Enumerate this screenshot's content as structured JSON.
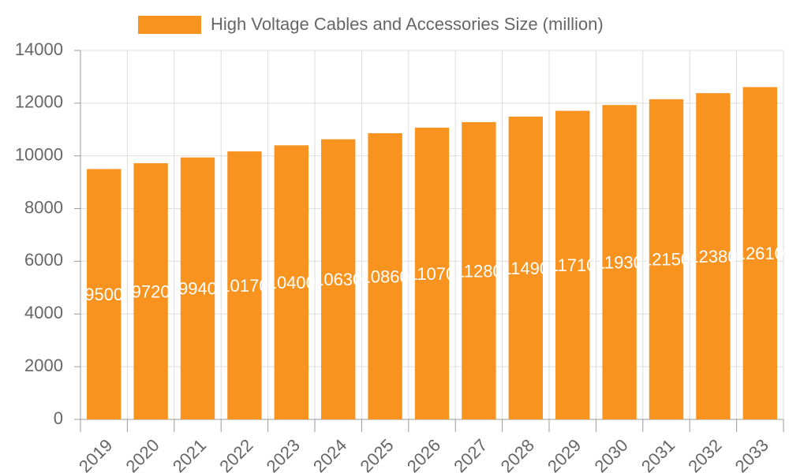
{
  "chart_data": {
    "type": "bar",
    "categories": [
      "2019",
      "2020",
      "2021",
      "2022",
      "2023",
      "2024",
      "2025",
      "2026",
      "2027",
      "2028",
      "2029",
      "2030",
      "2031",
      "2032",
      "2033"
    ],
    "series": [
      {
        "name": "High Voltage Cables and Accessories Size (million)",
        "color": "#f7931e",
        "values": [
          9500,
          9720,
          9940,
          10170,
          10400,
          10630,
          10860,
          11070,
          11280,
          11490,
          11710,
          11930,
          12150,
          12380,
          12610
        ]
      }
    ],
    "ylim": [
      0,
      14000
    ],
    "yticks": [
      0,
      2000,
      4000,
      6000,
      8000,
      10000,
      12000,
      14000
    ],
    "grid": true,
    "legend": "top",
    "data_labels": true
  }
}
